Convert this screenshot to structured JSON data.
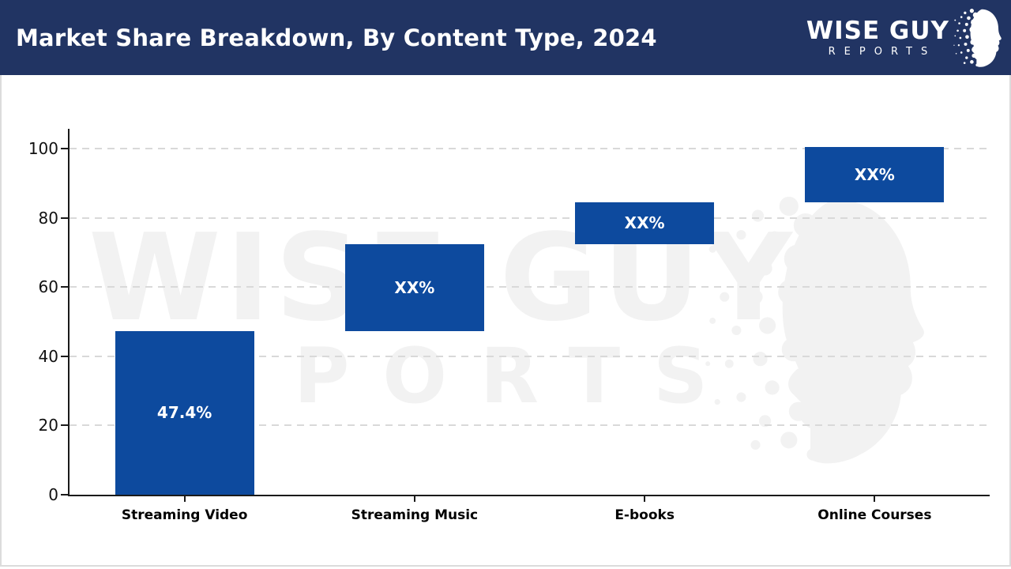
{
  "header": {
    "title": "Market Share Breakdown, By Content Type, 2024",
    "logo": {
      "title": "WISE GUY",
      "subtitle": "REPORTS"
    }
  },
  "watermark": {
    "line1": "WISE GUY",
    "line2": "PORTS"
  },
  "colors": {
    "header_bg": "#213463",
    "bar": "#0d4a9e",
    "bar_label": "#ffffff",
    "grid": "#d9d9d9",
    "axis": "#1a1a1a",
    "tick_label": "#111111",
    "watermark": "#f2f2f2"
  },
  "chart_data": {
    "type": "bar",
    "variant": "waterfall-floating",
    "title": "Market Share Breakdown, By Content Type, 2024",
    "categories": [
      "Streaming Video",
      "Streaming Music",
      "E-books",
      "Online Courses"
    ],
    "bars": [
      {
        "category": "Streaming Video",
        "start": 0,
        "end": 47.4,
        "label": "47.4%"
      },
      {
        "category": "Streaming Music",
        "start": 47.4,
        "end": 72.5,
        "label": "XX%"
      },
      {
        "category": "E-books",
        "start": 72.5,
        "end": 84.5,
        "label": "XX%"
      },
      {
        "category": "Online Courses",
        "start": 84.5,
        "end": 100.5,
        "label": "XX%"
      }
    ],
    "yticks": [
      0,
      20,
      40,
      60,
      80,
      100
    ],
    "ylim": [
      0,
      105.8
    ],
    "xlabel": "",
    "ylabel": "",
    "grid": "dashed-horizontal",
    "legend": null
  }
}
